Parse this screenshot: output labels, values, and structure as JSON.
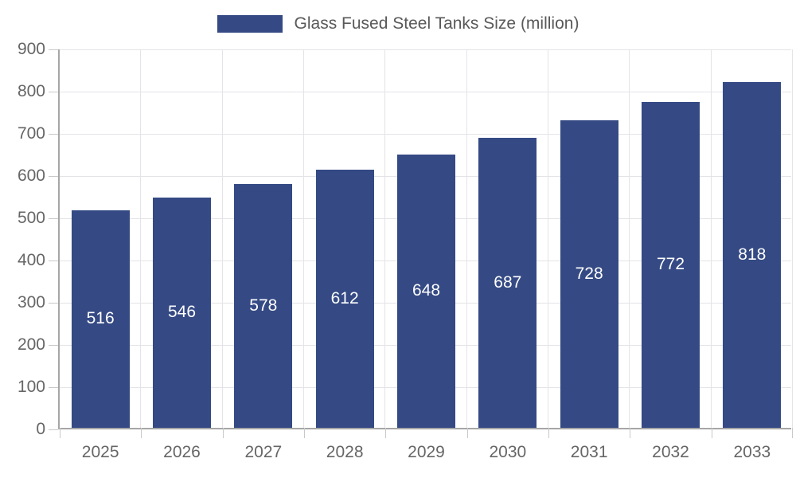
{
  "legend": {
    "label": "Glass Fused Steel Tanks Size (million)"
  },
  "chart_data": {
    "type": "bar",
    "title": "Glass Fused Steel Tanks Size (million)",
    "categories": [
      "2025",
      "2026",
      "2027",
      "2028",
      "2029",
      "2030",
      "2031",
      "2032",
      "2033"
    ],
    "values": [
      516,
      546,
      578,
      612,
      648,
      687,
      728,
      772,
      818
    ],
    "series": [
      {
        "name": "Glass Fused Steel Tanks Size (million)",
        "values": [
          516,
          546,
          578,
          612,
          648,
          687,
          728,
          772,
          818
        ]
      }
    ],
    "xlabel": "",
    "ylabel": "",
    "ylim": [
      0,
      900
    ],
    "yticks": [
      0,
      100,
      200,
      300,
      400,
      500,
      600,
      700,
      800,
      900
    ],
    "grid": true,
    "legend_position": "top-center",
    "bar_label_position": "inside-center",
    "colors": {
      "bar": "#354a84",
      "bar_label": "#ffffff",
      "axis_text": "#666666",
      "legend_text": "#595959",
      "grid_line": "#e4e4e8",
      "axis_line": "#a6a6a6",
      "tick_line": "#c9c9c9",
      "background": "#ffffff"
    }
  }
}
